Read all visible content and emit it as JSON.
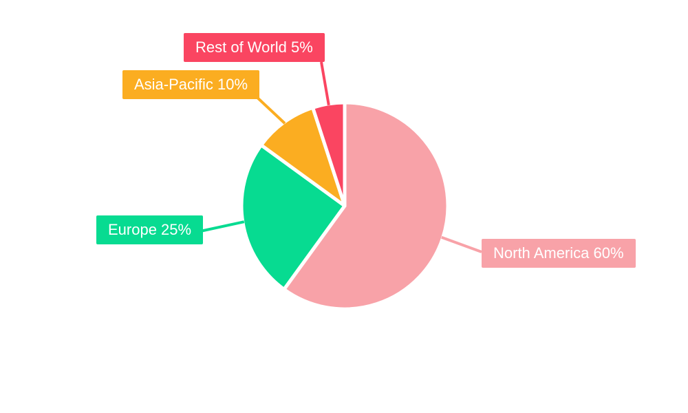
{
  "chart_data": {
    "type": "pie",
    "title": "",
    "background": "#FFFFFF",
    "separator_color": "#FFFFFF",
    "label_text_color": "#FFFFFF",
    "direction": "clockwise",
    "start_angle_deg": 0,
    "legend_position": "callout-labels",
    "slices": [
      {
        "name": "North America",
        "value": 60,
        "label": "North America 60%",
        "color": "#F8A2A8"
      },
      {
        "name": "Europe",
        "value": 25,
        "label": "Europe 25%",
        "color": "#07DB91"
      },
      {
        "name": "Asia-Pacific",
        "value": 10,
        "label": "Asia-Pacific 10%",
        "color": "#FBAD21"
      },
      {
        "name": "Rest of World",
        "value": 5,
        "label": "Rest of World 5%",
        "color": "#FA4561"
      }
    ]
  }
}
